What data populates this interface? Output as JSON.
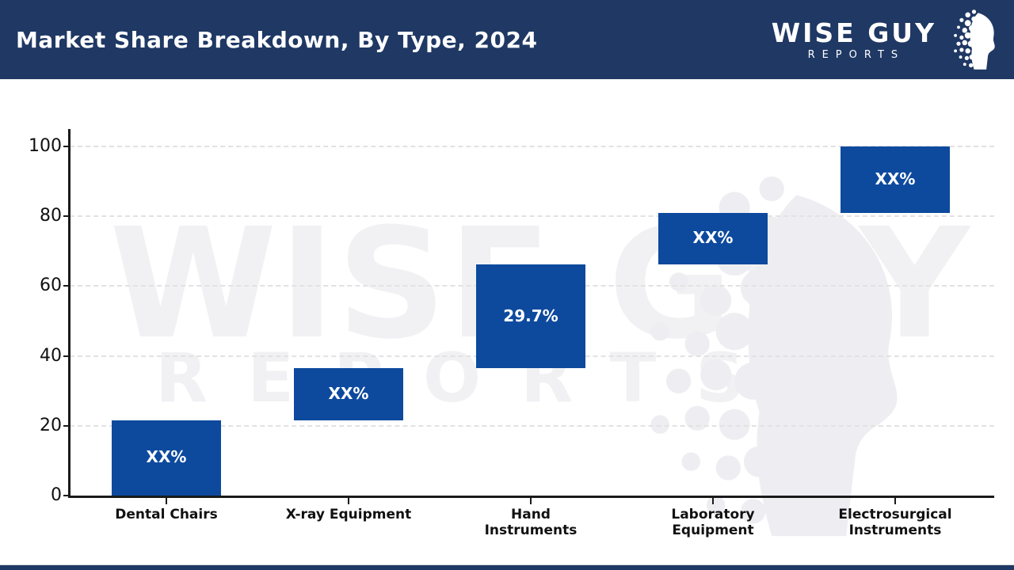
{
  "header": {
    "title": "Market Share Breakdown, By Type, 2024",
    "logo": {
      "primary": "WISE GUY",
      "secondary": "REPORTS"
    }
  },
  "watermark": {
    "primary": "WISE GUY",
    "secondary": "REPORTS"
  },
  "colors": {
    "header_bg": "#1f3864",
    "footer_bg": "#1f3864",
    "bar": "#0d4a9e",
    "bar_label": "#ffffff",
    "grid": "#e2e2e2",
    "axis": "#1a1a1a",
    "watermark": "#f1f1f4"
  },
  "chart_data": {
    "type": "bar",
    "subtype": "waterfall-floating-bars",
    "title": "Market Share Breakdown, By Type, 2024",
    "categories": [
      "Dental Chairs",
      "X-ray Equipment",
      "Hand Instruments",
      "Laboratory Equipment",
      "Electrosurgical Instruments"
    ],
    "segments": [
      {
        "category": "Dental Chairs",
        "start": 0,
        "end": 21.6,
        "label": "XX%"
      },
      {
        "category": "X-ray Equipment",
        "start": 21.6,
        "end": 36.5,
        "label": "XX%"
      },
      {
        "category": "Hand Instruments",
        "start": 36.5,
        "end": 66.2,
        "label": "29.7%",
        "value": 29.7
      },
      {
        "category": "Laboratory Equipment",
        "start": 66.2,
        "end": 81.0,
        "label": "XX%"
      },
      {
        "category": "Electrosurgical Instruments",
        "start": 81.0,
        "end": 100.0,
        "label": "XX%"
      }
    ],
    "ylabel": "",
    "xlabel": "",
    "yticks": [
      0,
      20,
      40,
      60,
      80,
      100
    ],
    "ylim": [
      0,
      105
    ],
    "grid": "horizontal-dashed",
    "legend": "none"
  }
}
